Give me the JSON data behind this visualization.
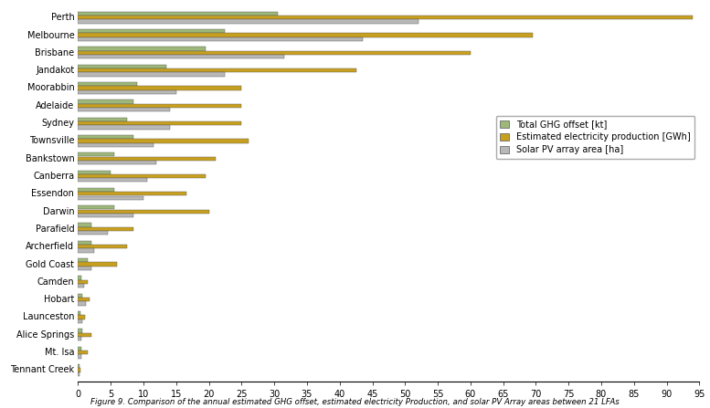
{
  "cities": [
    "Perth",
    "Melbourne",
    "Brisbane",
    "Jandakot",
    "Moorabbin",
    "Adelaide",
    "Sydney",
    "Townsville",
    "Bankstown",
    "Canberra",
    "Essendon",
    "Darwin",
    "Parafield",
    "Archerfield",
    "Gold Coast",
    "Camden",
    "Hobart",
    "Launceston",
    "Alice Springs",
    "Mt. Isa",
    "Tennant Creek"
  ],
  "ghg_offset": [
    30.5,
    22.5,
    19.5,
    13.5,
    9.0,
    8.5,
    7.5,
    8.5,
    5.5,
    5.0,
    5.5,
    5.5,
    2.0,
    2.0,
    1.5,
    0.5,
    0.7,
    0.4,
    0.7,
    0.5,
    0.2
  ],
  "electricity_production": [
    94.0,
    69.5,
    60.0,
    42.5,
    25.0,
    25.0,
    25.0,
    26.0,
    21.0,
    19.5,
    16.5,
    20.0,
    8.5,
    7.5,
    6.0,
    1.5,
    1.8,
    1.0,
    2.0,
    1.5,
    0.4
  ],
  "solar_pv_area": [
    52.0,
    43.5,
    31.5,
    22.5,
    15.0,
    14.0,
    14.0,
    11.5,
    12.0,
    10.5,
    10.0,
    8.5,
    4.5,
    2.5,
    2.0,
    0.9,
    1.2,
    0.7,
    0.5,
    0.5,
    0.2
  ],
  "color_ghg": "#9db87a",
  "color_elec": "#c8a020",
  "color_solar": "#b8b8b8",
  "legend_labels": [
    "Total GHG offset [kt]",
    "Estimated electricity production [GWh]",
    "Solar PV array area [ha]"
  ],
  "xlabel_ticks": [
    0,
    5,
    10,
    15,
    20,
    25,
    30,
    35,
    40,
    45,
    50,
    55,
    60,
    65,
    70,
    75,
    80,
    85,
    90,
    95
  ],
  "figure_caption": "Figure 9. Comparison of the annual estimated GHG offset, estimated electricity Production, and solar PV Array areas between 21 LFAs",
  "xlim": [
    0,
    95
  ]
}
